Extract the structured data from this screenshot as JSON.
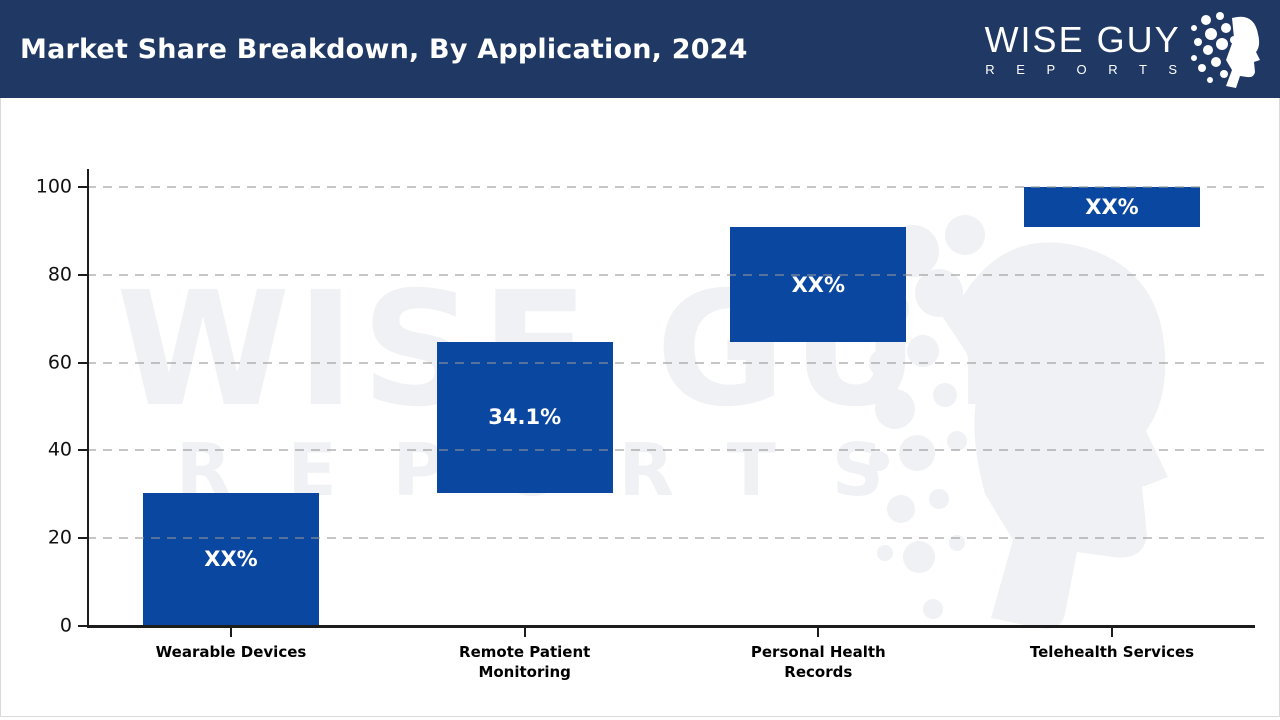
{
  "header": {
    "title": "Market Share Breakdown, By Application, 2024",
    "logo": {
      "wordmark": "WISE GUY",
      "subtext": "R E P O R T S"
    }
  },
  "watermark": {
    "line1": "WISE GUY",
    "line2": "REPORTS"
  },
  "chart_data": {
    "type": "bar",
    "subtype": "stacked-waterfall-percent",
    "title": "Market Share Breakdown, By Application, 2024",
    "categories": [
      "Wearable Devices",
      "Remote Patient Monitoring",
      "Personal Health Records",
      "Telehealth Services"
    ],
    "bars": [
      {
        "category": "Wearable Devices",
        "start": 0,
        "end": 30.4,
        "label": "XX%"
      },
      {
        "category": "Remote Patient Monitoring",
        "start": 30.4,
        "end": 64.6,
        "label": "34.1%"
      },
      {
        "category": "Personal Health Records",
        "start": 64.6,
        "end": 90.9,
        "label": "XX%"
      },
      {
        "category": "Telehealth Services",
        "start": 90.9,
        "end": 100,
        "label": "XX%"
      }
    ],
    "ylabel": "",
    "xlabel": "",
    "ylim": [
      0,
      104
    ],
    "yticks": [
      0,
      20,
      40,
      60,
      80,
      100
    ],
    "grid": "dashed-horizontal",
    "legend": "none",
    "bar_color": "#0a47a0",
    "bar_label_color": "#ffffff"
  },
  "colors": {
    "header_bg": "#203864",
    "bar": "#0a47a0",
    "axis": "#1c1c1c",
    "grid": "#c9c9c9",
    "watermark": "#f0f1f4",
    "card_border": "#d9d9d9"
  }
}
